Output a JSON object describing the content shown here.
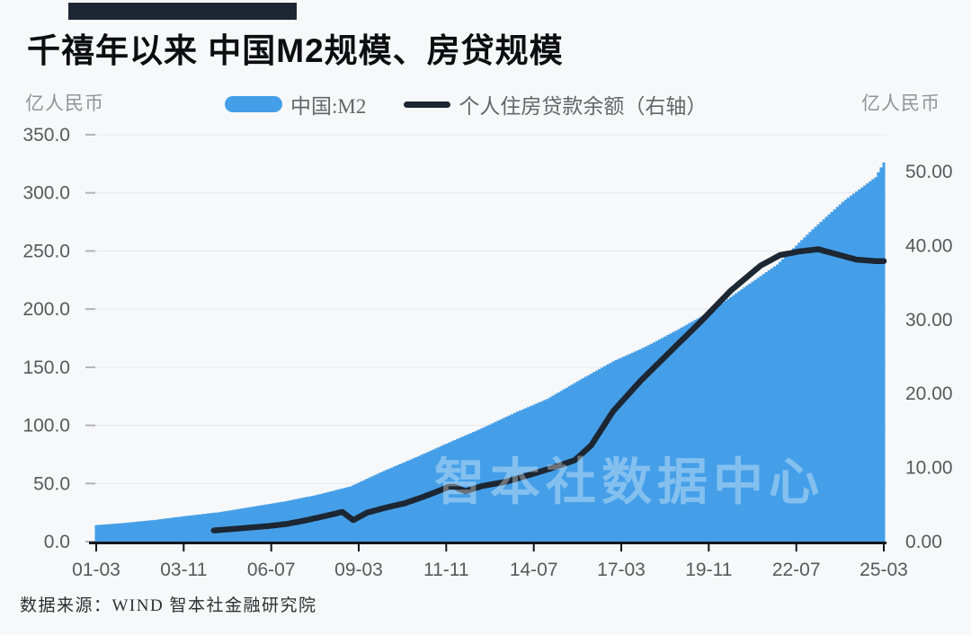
{
  "page": {
    "background": "#f7f8fa",
    "accent_bar_color": "#1c2733",
    "title": "千禧年以来 中国M2规模、房贷规模",
    "watermark": "智本社数据中心",
    "source_note": "数据来源：WIND 智本社金融研究院"
  },
  "axis_units": {
    "left": "亿人民币",
    "right": "亿人民币"
  },
  "legend": {
    "items": [
      {
        "swatch": "bar",
        "label": "中国:M2",
        "color": "#459fe8"
      },
      {
        "swatch": "line",
        "label": "个人住房贷款余额（右轴）",
        "color": "#1c2733"
      }
    ]
  },
  "chart_data": {
    "type": "combo: monthly area (bars) + line",
    "title": "千禧年以来 中国M2规模、房贷规模",
    "x_axis": {
      "start_month": "2001-03",
      "end_month": "2025-03",
      "months_per_tick": 32,
      "tick_labels": [
        "01-03",
        "03-11",
        "06-07",
        "09-03",
        "11-11",
        "14-07",
        "17-03",
        "19-11",
        "22-07",
        "25-03"
      ]
    },
    "left_axis": {
      "unit": "亿人民币",
      "min": 0,
      "max": 350,
      "tick_labels": [
        "350.0",
        "300.0",
        "250.0",
        "200.0",
        "150.0",
        "100.0",
        "50.0",
        "0.0"
      ]
    },
    "right_axis": {
      "unit": "亿人民币",
      "min": 0,
      "max": 50,
      "tick_labels": [
        "50.00",
        "40.00",
        "30.00",
        "20.00",
        "10.00",
        "0.00"
      ]
    },
    "grid": "horizontal",
    "legend_position": "top",
    "series": [
      {
        "name": "中国:M2",
        "style": "area",
        "axis": "left",
        "color": "#459fe8",
        "points": [
          [
            "2001-03",
            14.2
          ],
          [
            "2001-12",
            15.8
          ],
          [
            "2002-12",
            18.5
          ],
          [
            "2003-12",
            22.1
          ],
          [
            "2004-12",
            25.3
          ],
          [
            "2005-12",
            29.9
          ],
          [
            "2006-12",
            34.6
          ],
          [
            "2007-12",
            40.3
          ],
          [
            "2008-12",
            47.5
          ],
          [
            "2009-12",
            60.6
          ],
          [
            "2010-12",
            72.6
          ],
          [
            "2011-12",
            85.2
          ],
          [
            "2012-12",
            97.4
          ],
          [
            "2013-12",
            110.7
          ],
          [
            "2014-12",
            122.8
          ],
          [
            "2015-12",
            139.2
          ],
          [
            "2016-12",
            155.0
          ],
          [
            "2017-12",
            167.7
          ],
          [
            "2018-12",
            182.7
          ],
          [
            "2019-12",
            198.7
          ],
          [
            "2020-12",
            218.7
          ],
          [
            "2021-12",
            238.3
          ],
          [
            "2022-12",
            266.4
          ],
          [
            "2023-12",
            292.3
          ],
          [
            "2024-12",
            313.5
          ],
          [
            "2025-03",
            326.1
          ]
        ]
      },
      {
        "name": "个人住房贷款余额（右轴）",
        "style": "line",
        "axis": "right",
        "color": "#1c2733",
        "points": [
          [
            "2004-10",
            1.5
          ],
          [
            "2005-08",
            1.8
          ],
          [
            "2006-06",
            2.1
          ],
          [
            "2007-01",
            2.4
          ],
          [
            "2007-08",
            2.9
          ],
          [
            "2008-02",
            3.4
          ],
          [
            "2008-09",
            4.0
          ],
          [
            "2009-01",
            2.9
          ],
          [
            "2009-06",
            3.9
          ],
          [
            "2010-01",
            4.6
          ],
          [
            "2010-08",
            5.2
          ],
          [
            "2011-03",
            6.1
          ],
          [
            "2011-12",
            7.4
          ],
          [
            "2012-02",
            7.4
          ],
          [
            "2012-06",
            6.8
          ],
          [
            "2012-12",
            7.5
          ],
          [
            "2013-09",
            8.1
          ],
          [
            "2014-08",
            9.3
          ],
          [
            "2015-03",
            10.1
          ],
          [
            "2015-10",
            11.0
          ],
          [
            "2016-04",
            13.0
          ],
          [
            "2016-12",
            17.6
          ],
          [
            "2017-10",
            21.7
          ],
          [
            "2018-09",
            25.7
          ],
          [
            "2019-08",
            29.7
          ],
          [
            "2020-07",
            33.9
          ],
          [
            "2021-06",
            37.3
          ],
          [
            "2022-01",
            38.7
          ],
          [
            "2022-08",
            39.2
          ],
          [
            "2023-03",
            39.5
          ],
          [
            "2023-11",
            38.7
          ],
          [
            "2024-05",
            38.1
          ],
          [
            "2024-12",
            37.9
          ],
          [
            "2025-03",
            37.9
          ]
        ]
      }
    ]
  }
}
